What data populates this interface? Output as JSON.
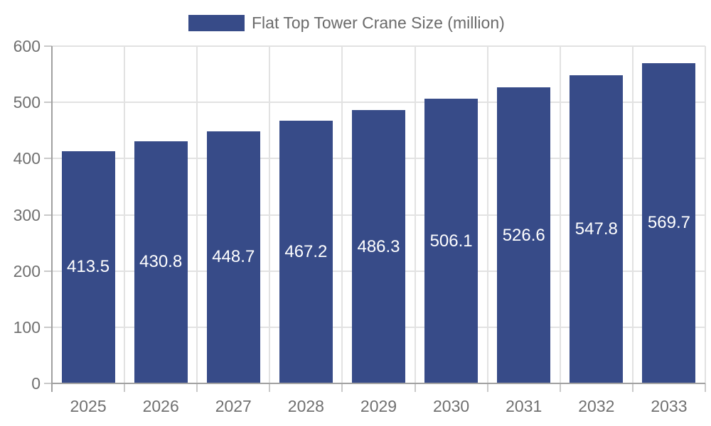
{
  "legend": {
    "label": "Flat Top Tower Crane Size (million)"
  },
  "colors": {
    "bar": "#374B88",
    "background": "#ffffff",
    "grid_line": "#e2e2e2",
    "axis_line": "#a0a0a0",
    "tick": "#c9c9c9",
    "axis_label_text": "#707070",
    "legend_text": "#6b6b6b",
    "value_label_text": "#ffffff"
  },
  "chart_data": {
    "type": "bar",
    "title": "",
    "series_name": "Flat Top Tower Crane Size (million)",
    "categories": [
      "2025",
      "2026",
      "2027",
      "2028",
      "2029",
      "2030",
      "2031",
      "2032",
      "2033"
    ],
    "values": [
      413.5,
      430.8,
      448.7,
      467.2,
      486.3,
      506.1,
      526.6,
      547.8,
      569.7
    ],
    "xlabel": "",
    "ylabel": "",
    "ylim": [
      0,
      600
    ],
    "y_ticks": [
      0,
      100,
      200,
      300,
      400,
      500,
      600
    ],
    "grid": true,
    "legend_position": "top-center",
    "value_label_position": "inside-center"
  }
}
